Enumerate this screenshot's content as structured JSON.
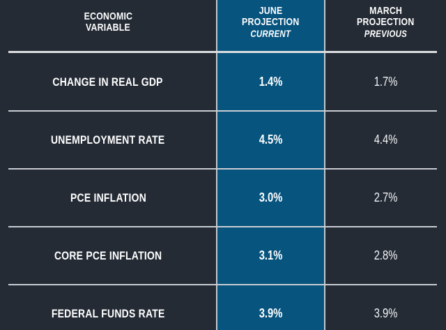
{
  "colors": {
    "background": "#242B35",
    "highlight_column": "#07547E",
    "separator_line": "#C9CDD2",
    "header_separator_line": "#DCDEE1",
    "text": "#FFFFFF"
  },
  "chart_data": {
    "type": "table",
    "highlighted_column": "JUNE PROJECTION",
    "header": {
      "variable": {
        "line1": "ECONOMIC",
        "line2": "VARIABLE"
      },
      "june": {
        "line1": "JUNE",
        "line2": "PROJECTION",
        "sub": "CURRENT"
      },
      "march": {
        "line1": "MARCH",
        "line2": "PROJECTION",
        "sub": "PREVIOUS"
      }
    },
    "columns": [
      "ECONOMIC VARIABLE",
      "JUNE PROJECTION (CURRENT)",
      "MARCH PROJECTION (PREVIOUS)"
    ],
    "rows": [
      {
        "variable": "CHANGE IN REAL GDP",
        "june": "1.4%",
        "march": "1.7%"
      },
      {
        "variable": "UNEMPLOYMENT RATE",
        "june": "4.5%",
        "march": "4.4%"
      },
      {
        "variable": "PCE INFLATION",
        "june": "3.0%",
        "march": "2.7%"
      },
      {
        "variable": "CORE PCE INFLATION",
        "june": "3.1%",
        "march": "2.8%"
      },
      {
        "variable": "FEDERAL FUNDS RATE",
        "june": "3.9%",
        "march": "3.9%"
      }
    ],
    "values_numeric": {
      "june": [
        1.4,
        4.5,
        3.0,
        3.1,
        3.9
      ],
      "march": [
        1.7,
        4.4,
        2.7,
        2.8,
        3.9
      ]
    }
  }
}
